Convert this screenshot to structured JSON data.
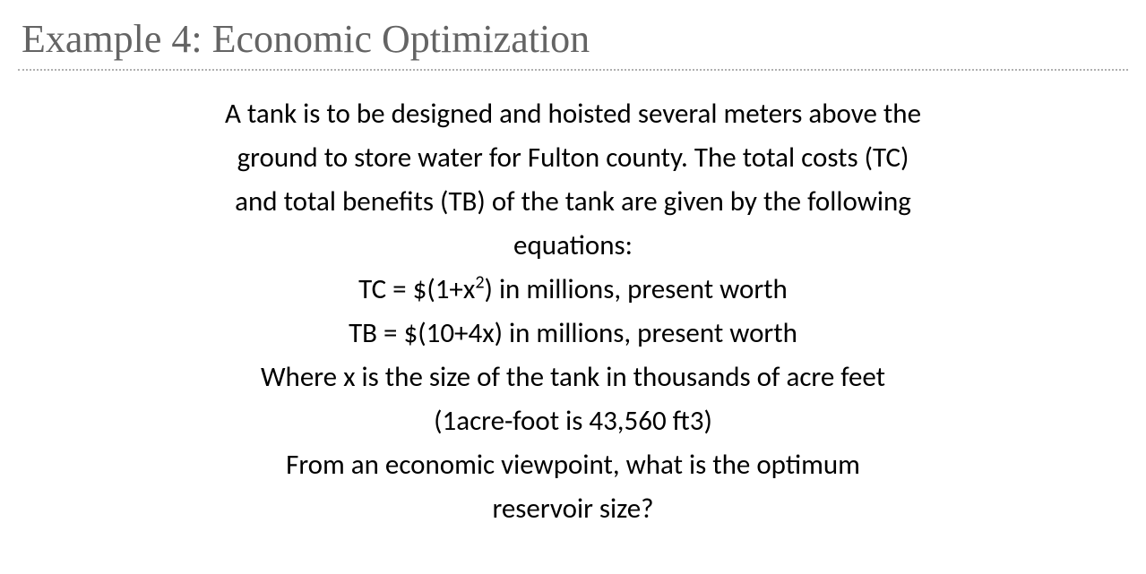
{
  "title": "Example 4: Economic Optimization",
  "body": {
    "line1": "A tank is to be designed and hoisted several meters above the",
    "line2": "ground to store water for Fulton county. The total costs (TC)",
    "line3": "and total benefits (TB) of the tank are given by the following",
    "line4": "equations:",
    "line5_pre": "TC = $(1+x",
    "line5_sup": "2",
    "line5_post": ") in millions, present worth",
    "line6": "TB = $(10+4x) in millions, present worth",
    "line7": "Where x is the size of the tank in thousands of acre feet",
    "line8": "(1acre-foot is 43,560 ft3)",
    "line9": "From an economic viewpoint, what is the optimum",
    "line10": "reservoir size?"
  },
  "colors": {
    "title_color": "#646464",
    "text_color": "#000000",
    "background": "#ffffff",
    "divider_color": "#b0b0b0"
  },
  "typography": {
    "title_fontsize": 44,
    "body_fontsize": 31,
    "title_family": "Georgia",
    "body_family": "Gill Sans"
  }
}
